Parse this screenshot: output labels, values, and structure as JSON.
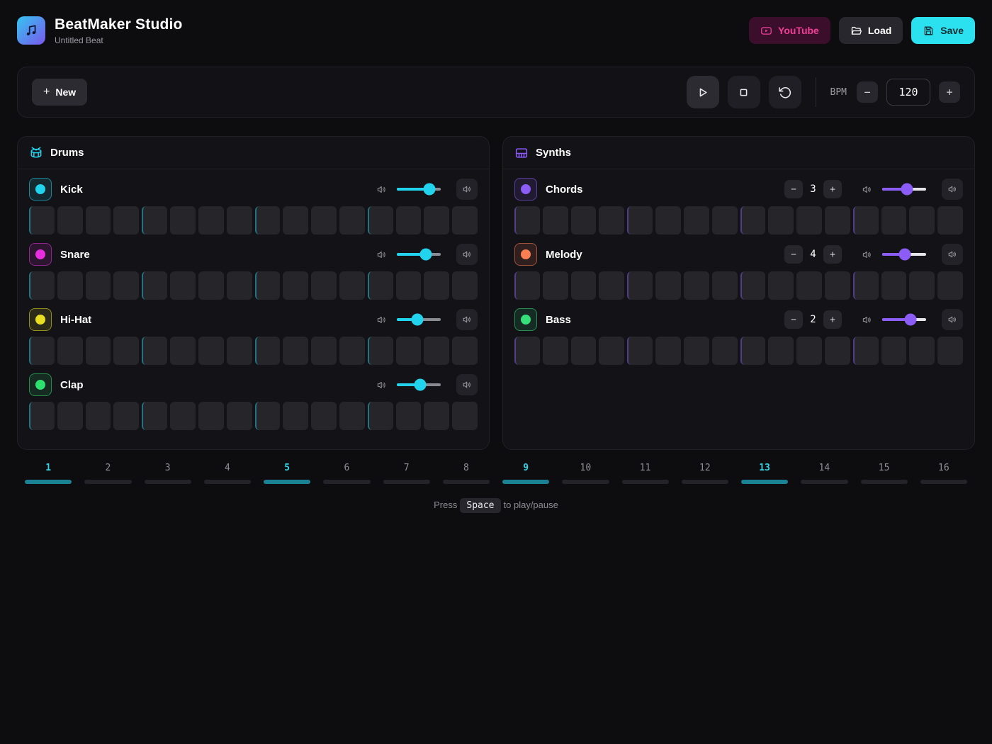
{
  "app": {
    "name": "BeatMaker Studio",
    "subtitle": "Untitled Beat"
  },
  "actions": {
    "youtube": "YouTube",
    "load": "Load",
    "save": "Save"
  },
  "transport": {
    "new": "New",
    "plus": "+",
    "minus": "−",
    "bpm_label": "BPM",
    "bpm": "120"
  },
  "colors": {
    "page_bg": "#0d0d10",
    "panel_bg": "#131317",
    "cell_bg": "#25252a",
    "cyan_accent": "#22d3ee",
    "purple_accent": "#8b5cf6",
    "youtube_pink": "#f23f98",
    "save_cyan": "#2be0ef",
    "beat_bar": "#1a8294",
    "inactive_bar": "#232329"
  },
  "panels": [
    {
      "title": "Drums",
      "icon": "drum-icon",
      "accent": "#22d3ee",
      "slider_rest": "#8a8a92",
      "tracks": [
        {
          "name": "Kick",
          "color": "#22d3ee",
          "volume": 74
        },
        {
          "name": "Snare",
          "color": "#e62ee0",
          "volume": 66
        },
        {
          "name": "Hi-Hat",
          "color": "#e8df22",
          "volume": 46
        },
        {
          "name": "Clap",
          "color": "#2ee06e",
          "volume": 54
        }
      ]
    },
    {
      "title": "Synths",
      "icon": "piano-icon",
      "accent": "#8b5cf6",
      "slider_rest": "#e6e6ea",
      "tracks": [
        {
          "name": "Chords",
          "color": "#8b5cf6",
          "volume": 56,
          "octave": 3
        },
        {
          "name": "Melody",
          "color": "#fb7e52",
          "volume": 51,
          "octave": 4
        },
        {
          "name": "Bass",
          "color": "#35e07a",
          "volume": 65,
          "octave": 2
        }
      ]
    }
  ],
  "sequencer": {
    "steps_per_track": 16
  },
  "step_indicator": {
    "numbers": [
      "1",
      "2",
      "3",
      "4",
      "5",
      "6",
      "7",
      "8",
      "9",
      "10",
      "11",
      "12",
      "13",
      "14",
      "15",
      "16"
    ],
    "beats": [
      1,
      5,
      9,
      13
    ]
  },
  "hint": {
    "prefix": "Press",
    "key": "Space",
    "suffix": "to play/pause"
  }
}
